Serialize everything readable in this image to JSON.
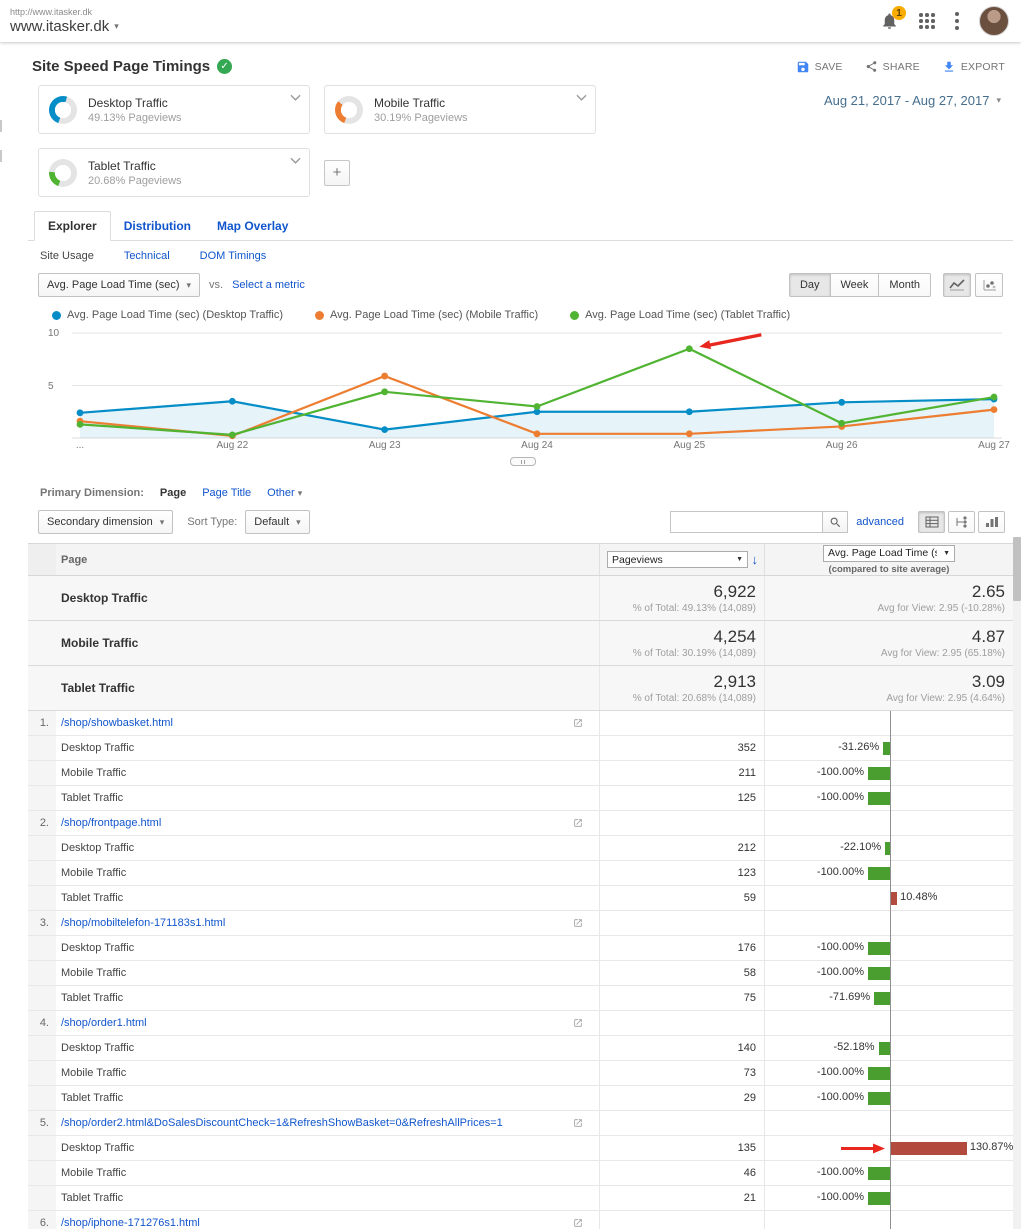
{
  "topbar": {
    "url": "http://www.itasker.dk",
    "account": "www.itasker.dk",
    "notification_count": "1"
  },
  "header": {
    "title": "Site Speed Page Timings",
    "save": "SAVE",
    "share": "SHARE",
    "export": "EXPORT"
  },
  "date_range": "Aug 21, 2017 - Aug 27, 2017",
  "segments": [
    {
      "name": "Desktop Traffic",
      "detail": "49.13% Pageviews",
      "color": "#058dc7",
      "pct": 49.13
    },
    {
      "name": "Mobile Traffic",
      "detail": "30.19% Pageviews",
      "color": "#ed7d31",
      "pct": 30.19
    },
    {
      "name": "Tablet Traffic",
      "detail": "20.68% Pageviews",
      "color": "#50b432",
      "pct": 20.68
    }
  ],
  "add_segment_label": "+",
  "tabs": [
    {
      "label": "Explorer",
      "active": true
    },
    {
      "label": "Distribution",
      "active": false
    },
    {
      "label": "Map Overlay",
      "active": false
    }
  ],
  "subtabs": [
    {
      "label": "Site Usage",
      "active": true
    },
    {
      "label": "Technical",
      "active": false
    },
    {
      "label": "DOM Timings",
      "active": false
    }
  ],
  "metric_bar": {
    "metric": "Avg. Page Load Time (sec)",
    "vs": "vs.",
    "select_metric": "Select a metric",
    "granularity": [
      {
        "label": "Day",
        "active": true
      },
      {
        "label": "Week",
        "active": false
      },
      {
        "label": "Month",
        "active": false
      }
    ]
  },
  "chart_data": {
    "type": "line",
    "x": [
      "...",
      "Aug 22",
      "Aug 23",
      "Aug 24",
      "Aug 25",
      "Aug 26",
      "Aug 27"
    ],
    "ylim": [
      0,
      10
    ],
    "yticks": [
      5,
      10
    ],
    "grid": true,
    "legend_position": "top",
    "series": [
      {
        "name": "Avg. Page Load Time (sec) (Desktop Traffic)",
        "color": "#058dc7",
        "area": true,
        "values": [
          2.4,
          3.5,
          0.8,
          2.5,
          2.5,
          3.4,
          3.7
        ]
      },
      {
        "name": "Avg. Page Load Time (sec) (Mobile Traffic)",
        "color": "#ed7d31",
        "area": false,
        "values": [
          1.6,
          0.2,
          5.9,
          0.4,
          0.4,
          1.1,
          2.7
        ]
      },
      {
        "name": "Avg. Page Load Time (sec) (Tablet Traffic)",
        "color": "#50b432",
        "area": false,
        "values": [
          1.3,
          0.3,
          4.4,
          3.0,
          8.5,
          1.4,
          3.9
        ]
      }
    ]
  },
  "annotations": {
    "chart_arrow": "red arrow pointing at Tablet Traffic peak on Aug 25",
    "table_arrow": "red arrow pointing at Desktop Traffic +130.87% bar in row 5"
  },
  "primary_dimension": {
    "label": "Primary Dimension:",
    "selected": "Page",
    "options": [
      "Page Title",
      "Other"
    ]
  },
  "toolbar": {
    "secondary_dimension": "Secondary dimension",
    "sort_type_label": "Sort Type:",
    "sort_type": "Default",
    "advanced": "advanced"
  },
  "table": {
    "columns": {
      "page": "Page",
      "pageviews": "Pageviews",
      "metric": "Avg. Page Load Time (sec)",
      "metric_note": "(compared to site average)"
    },
    "bar_colors": {
      "negative": "#4a9e2f",
      "positive": "#b24a3d"
    },
    "summary_rows": [
      {
        "label": "Desktop Traffic",
        "pageviews": "6,922",
        "pageviews_note": "% of Total: 49.13% (14,089)",
        "value": "2.65",
        "value_note": "Avg for View: 2.95 (-10.28%)"
      },
      {
        "label": "Mobile Traffic",
        "pageviews": "4,254",
        "pageviews_note": "% of Total: 30.19% (14,089)",
        "value": "4.87",
        "value_note": "Avg for View: 2.95 (65.18%)"
      },
      {
        "label": "Tablet Traffic",
        "pageviews": "2,913",
        "pageviews_note": "% of Total: 20.68% (14,089)",
        "value": "3.09",
        "value_note": "Avg for View: 2.95 (4.64%)"
      }
    ],
    "rows": [
      {
        "rank": "1.",
        "url": "/shop/showbasket.html",
        "segments": [
          {
            "label": "Desktop Traffic",
            "pageviews": "352",
            "delta": -31.26,
            "delta_label": "-31.26%"
          },
          {
            "label": "Mobile Traffic",
            "pageviews": "211",
            "delta": -100,
            "delta_label": "-100.00%"
          },
          {
            "label": "Tablet Traffic",
            "pageviews": "125",
            "delta": -100,
            "delta_label": "-100.00%"
          }
        ]
      },
      {
        "rank": "2.",
        "url": "/shop/frontpage.html",
        "segments": [
          {
            "label": "Desktop Traffic",
            "pageviews": "212",
            "delta": -22.1,
            "delta_label": "-22.10%"
          },
          {
            "label": "Mobile Traffic",
            "pageviews": "123",
            "delta": -100,
            "delta_label": "-100.00%"
          },
          {
            "label": "Tablet Traffic",
            "pageviews": "59",
            "delta": 10.48,
            "delta_label": "10.48%"
          }
        ]
      },
      {
        "rank": "3.",
        "url": "/shop/mobiltelefon-171183s1.html",
        "segments": [
          {
            "label": "Desktop Traffic",
            "pageviews": "176",
            "delta": -100,
            "delta_label": "-100.00%"
          },
          {
            "label": "Mobile Traffic",
            "pageviews": "58",
            "delta": -100,
            "delta_label": "-100.00%"
          },
          {
            "label": "Tablet Traffic",
            "pageviews": "75",
            "delta": -71.69,
            "delta_label": "-71.69%"
          }
        ]
      },
      {
        "rank": "4.",
        "url": "/shop/order1.html",
        "segments": [
          {
            "label": "Desktop Traffic",
            "pageviews": "140",
            "delta": -52.18,
            "delta_label": "-52.18%"
          },
          {
            "label": "Mobile Traffic",
            "pageviews": "73",
            "delta": -100,
            "delta_label": "-100.00%"
          },
          {
            "label": "Tablet Traffic",
            "pageviews": "29",
            "delta": -100,
            "delta_label": "-100.00%"
          }
        ]
      },
      {
        "rank": "5.",
        "url": "/shop/order2.html&DoSalesDiscountCheck=1&RefreshShowBasket=0&RefreshAllPrices=1",
        "segments": [
          {
            "label": "Desktop Traffic",
            "pageviews": "135",
            "delta": 130.87,
            "delta_label": "130.87%",
            "arrow": true
          },
          {
            "label": "Mobile Traffic",
            "pageviews": "46",
            "delta": -100,
            "delta_label": "-100.00%"
          },
          {
            "label": "Tablet Traffic",
            "pageviews": "21",
            "delta": -100,
            "delta_label": "-100.00%"
          }
        ]
      },
      {
        "rank": "6.",
        "url": "/shop/iphone-171276s1.html",
        "segments": []
      }
    ]
  }
}
